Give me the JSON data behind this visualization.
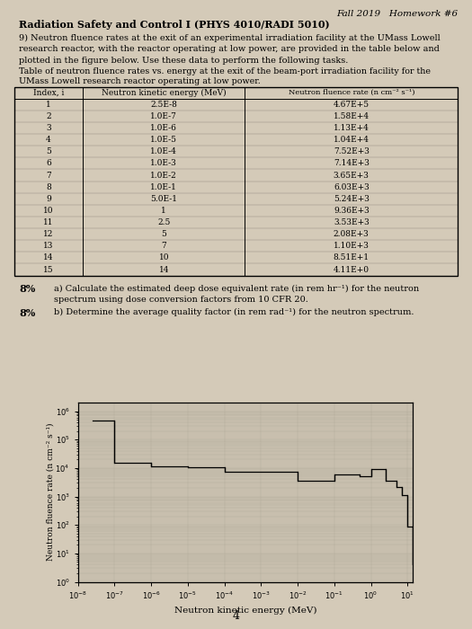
{
  "header_right": "Fall 2019   Homework #6",
  "course": "Radiation Safety and Control I (PHYS 4010/RADI 5010)",
  "problem_line1": "9) Neutron fluence rates at the exit of an experimental irradiation facility at the UMass Lowell",
  "problem_line2": "research reactor, with the reactor operating at low power, are provided in the table below and",
  "problem_line3": "plotted in the figure below. Use these data to perform the following tasks.",
  "table_title_line1": "Table of neutron fluence rates vs. energy at the exit of the beam-port irradiation facility for the",
  "table_title_line2": "UMass Lowell research reactor operating at low power.",
  "col1_header": "Index, i",
  "col2_header": "Neutron kinetic energy (MeV)",
  "col3_header": "Neutron fluence rate (n cm⁻² s⁻¹)",
  "indices": [
    "1",
    "2",
    "3",
    "4",
    "5",
    "6",
    "7",
    "8",
    "9",
    "10",
    "11",
    "12",
    "13",
    "14",
    "15"
  ],
  "energies_str": [
    "2.5E-8",
    "1.0E-7",
    "1.0E-6",
    "1.0E-5",
    "1.0E-4",
    "1.0E-3",
    "1.0E-2",
    "1.0E-1",
    "5.0E-1",
    "1",
    "2.5",
    "5",
    "7",
    "10",
    "14"
  ],
  "fluences_str": [
    "4.67E+5",
    "1.58E+4",
    "1.13E+4",
    "1.04E+4",
    "7.52E+3",
    "7.14E+3",
    "3.65E+3",
    "6.03E+3",
    "5.24E+3",
    "9.36E+3",
    "3.53E+3",
    "2.08E+3",
    "1.10E+3",
    "8.51E+1",
    "4.11E+0"
  ],
  "energies": [
    2.5e-08,
    1e-07,
    1e-06,
    1e-05,
    0.0001,
    0.001,
    0.01,
    0.1,
    0.5,
    1.0,
    2.5,
    5.0,
    7.0,
    10.0,
    14.0
  ],
  "fluences": [
    467000.0,
    15800.0,
    11300.0,
    10400.0,
    7520.0,
    7140.0,
    3650.0,
    6030.0,
    5240.0,
    9360.0,
    3530.0,
    2080.0,
    1100.0,
    85.1,
    4.11
  ],
  "part_a_pct": "8%",
  "part_a_line1": "a) Calculate the estimated deep dose equivalent rate (in rem hr⁻¹) for the neutron",
  "part_a_line2": "spectrum using dose conversion factors from 10 CFR 20.",
  "part_b_pct": "8%",
  "part_b_text": "b) Determine the average quality factor (in rem rad⁻¹) for the neutron spectrum.",
  "xlabel": "Neutron kinetic energy (MeV)",
  "ylabel": "Neutron fluence rate (n cm⁻² s⁻¹)",
  "page_number": "4",
  "bg_color": "#d4cab8",
  "plot_bg_color": "#c8bfae",
  "line_color": "#000000",
  "grid_color": "#b0a898"
}
